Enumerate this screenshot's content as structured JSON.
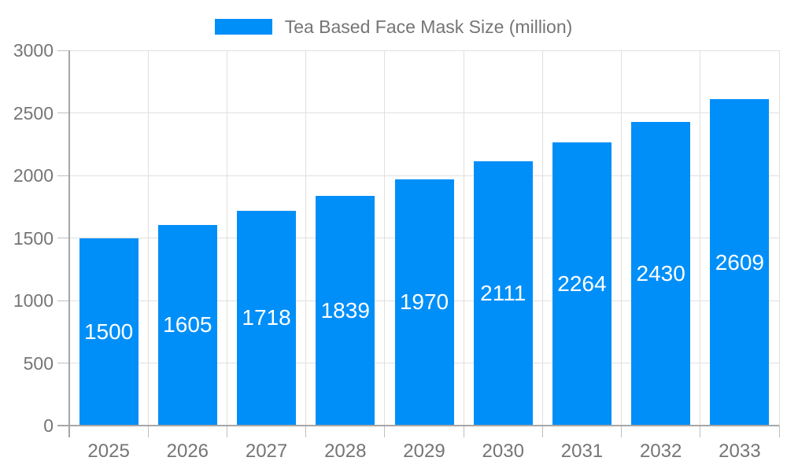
{
  "chart_data": {
    "type": "bar",
    "title": "Tea Based Face Mask Size (million)",
    "legend": [
      {
        "label": "Tea Based Face Mask Size (million)"
      }
    ],
    "legend_position": "top",
    "categories": [
      "2025",
      "2026",
      "2027",
      "2028",
      "2029",
      "2030",
      "2031",
      "2032",
      "2033"
    ],
    "series": [
      {
        "name": "Tea Based Face Mask Size (million)",
        "values": [
          1500,
          1605,
          1718,
          1839,
          1970,
          2111,
          2264,
          2430,
          2609
        ]
      }
    ],
    "value_labels": [
      "1500",
      "1605",
      "1718",
      "1839",
      "1970",
      "2111",
      "2264",
      "2430",
      "2609"
    ],
    "value_label_position": "inside-center",
    "xlabel": "",
    "ylabel": "",
    "ylim": [
      0,
      3000
    ],
    "yticks": [
      0,
      500,
      1000,
      1500,
      2000,
      2500,
      3000
    ],
    "grid": true
  },
  "colors": {
    "bar": "#008FF8",
    "grid": "#e0e0e0",
    "axis": "#a6a6a6",
    "tick": "#bfbfbf",
    "axis_text": "#757575",
    "value_text": "#ffffff",
    "background": "#ffffff"
  }
}
